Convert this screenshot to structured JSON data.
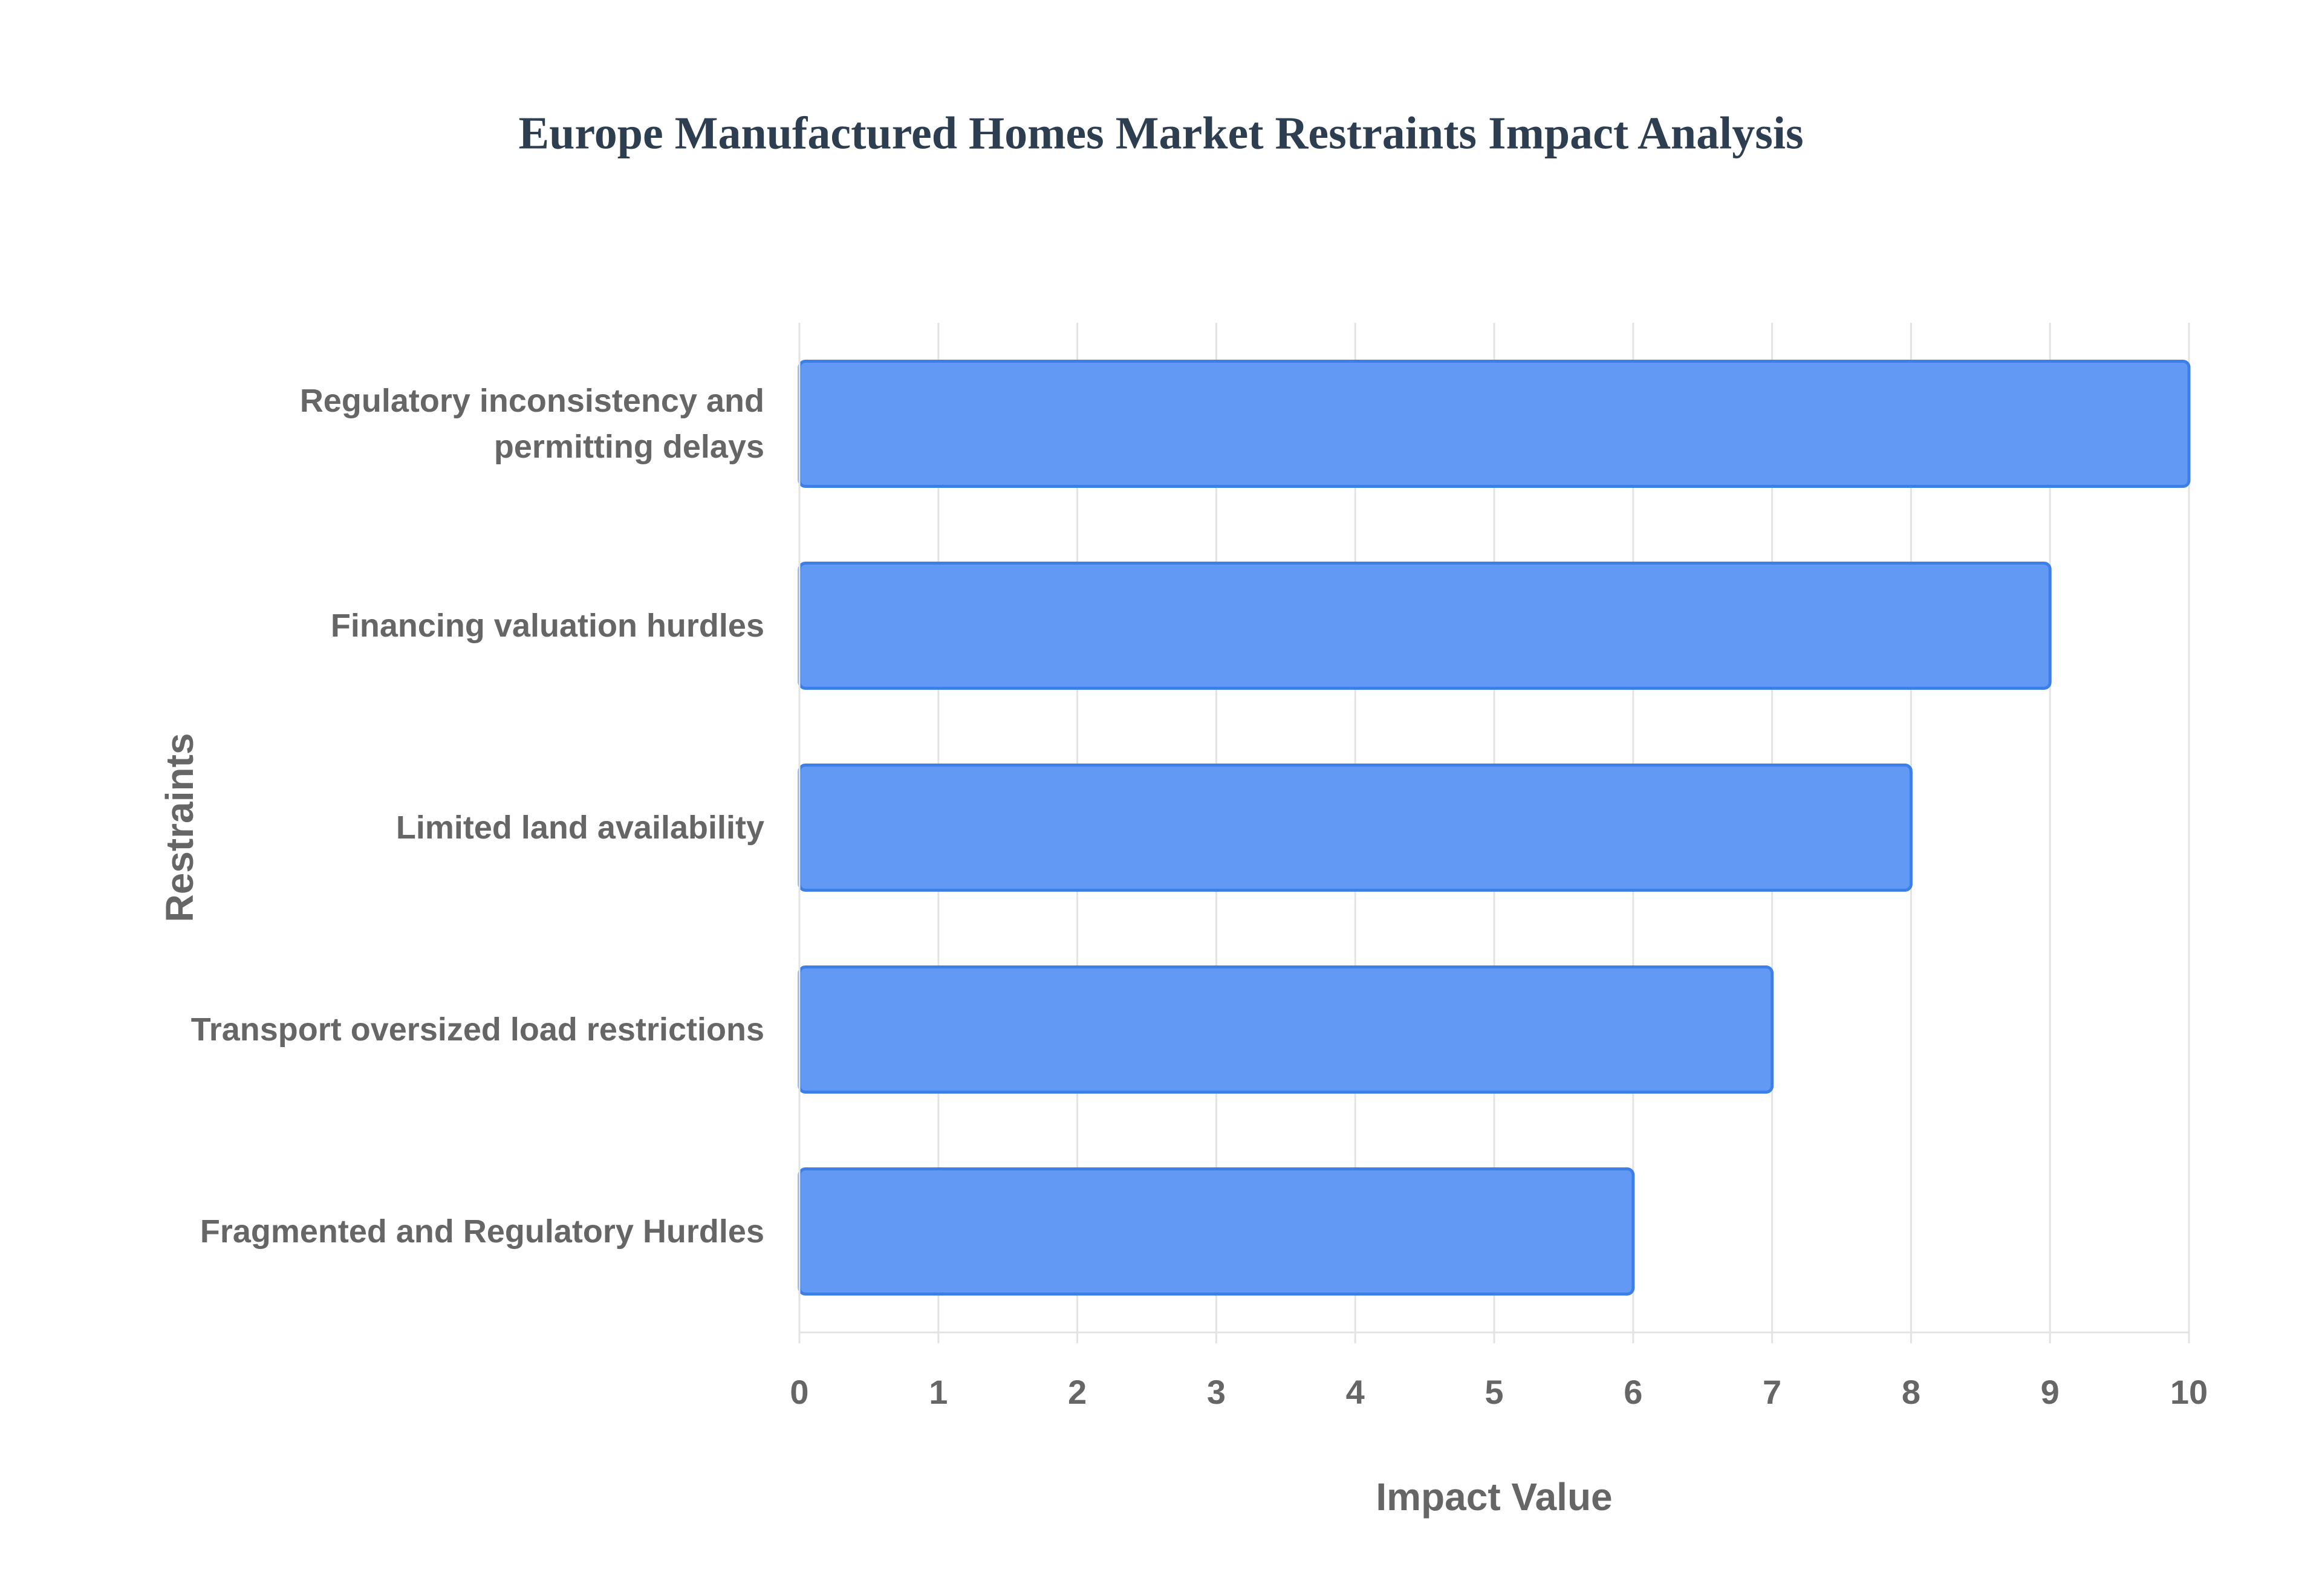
{
  "chart_data": {
    "type": "bar",
    "orientation": "horizontal",
    "title": "Europe Manufactured Homes Market Restraints Impact Analysis",
    "x_label": "Impact Value",
    "y_label": "Restraints",
    "categories": [
      "Regulatory inconsistency and permitting delays",
      "Financing valuation hurdles",
      "Limited land availability",
      "Transport oversized load restrictions",
      "Fragmented and Regulatory Hurdles"
    ],
    "values": [
      10,
      9,
      8,
      7,
      6
    ],
    "color": "#6199f5",
    "xlim": [
      0,
      10
    ],
    "xticks": [
      0,
      1,
      2,
      3,
      4,
      5,
      6,
      7,
      8,
      9,
      10
    ],
    "grid": true
  }
}
